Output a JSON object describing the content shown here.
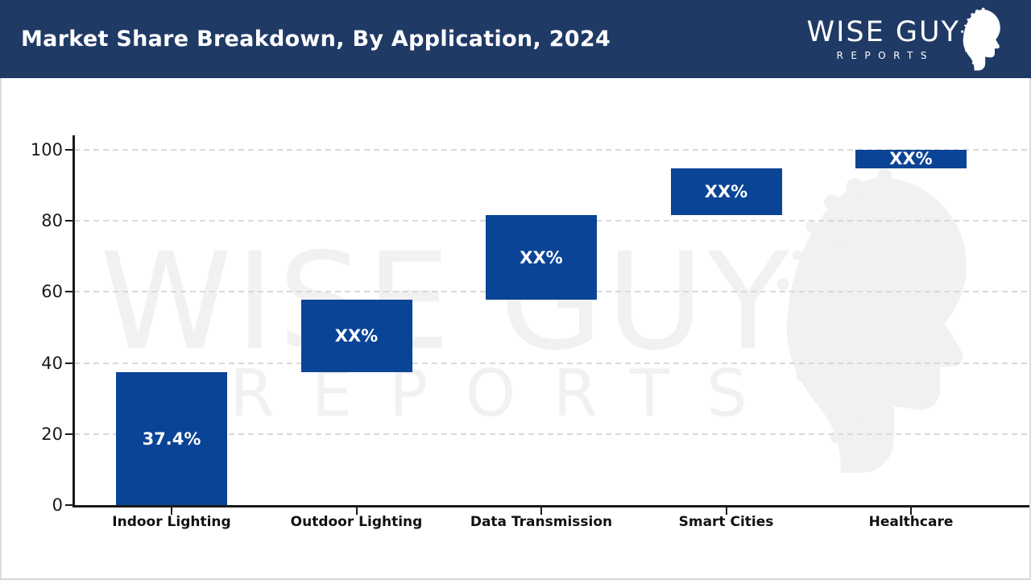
{
  "header": {
    "title": "Market Share Breakdown, By Application, 2024",
    "logo": {
      "wordmark": "WISE GUY",
      "subtext": "REPORTS"
    }
  },
  "watermark": {
    "wordmark": "WISE GUY",
    "subtext": "REPORTS"
  },
  "colors": {
    "header_bg": "#203a66",
    "bar_color": "#0a4496",
    "axis_color": "#1a1a1a",
    "grid_color": "#d9d9d9",
    "watermark_color": "#f1f1f1",
    "bar_label_color": "#ffffff"
  },
  "chart_data": {
    "type": "bar",
    "subtype": "waterfall",
    "title": "Market Share Breakdown, By Application, 2024",
    "xlabel": "",
    "ylabel": "",
    "categories": [
      "Indoor Lighting",
      "Outdoor Lighting",
      "Data Transmission",
      "Smart Cities",
      "Healthcare"
    ],
    "segments": [
      {
        "category": "Indoor Lighting",
        "start": 0,
        "end": 37.4,
        "label": "37.4%"
      },
      {
        "category": "Outdoor Lighting",
        "start": 37.4,
        "end": 57.8,
        "label": "XX%"
      },
      {
        "category": "Data Transmission",
        "start": 57.8,
        "end": 81.6,
        "label": "XX%"
      },
      {
        "category": "Smart Cities",
        "start": 81.6,
        "end": 94.8,
        "label": "XX%"
      },
      {
        "category": "Healthcare",
        "start": 94.8,
        "end": 100.0,
        "label": "XX%"
      }
    ],
    "y_axis": {
      "ticks": [
        0,
        20,
        40,
        60,
        80,
        100
      ],
      "ylim": [
        0,
        104
      ]
    },
    "grid": "horizontal-dashed",
    "legend": "none"
  }
}
